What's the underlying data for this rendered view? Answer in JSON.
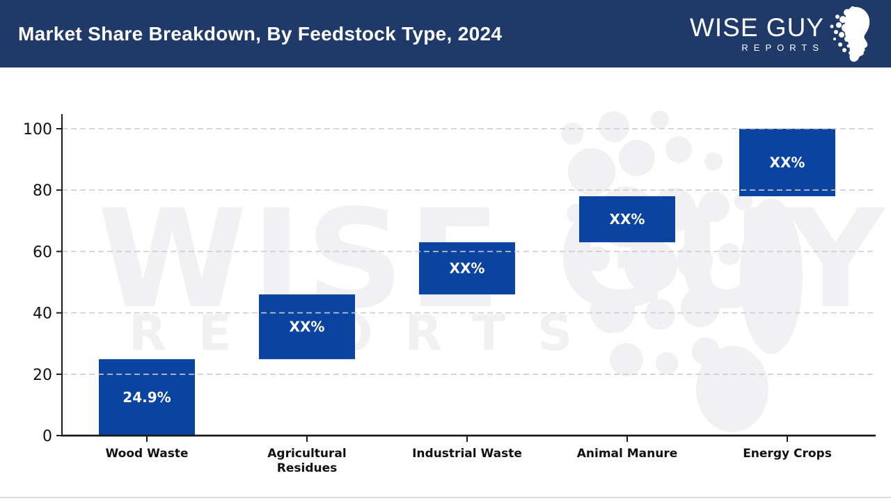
{
  "header": {
    "title": "Market Share Breakdown, By Feedstock Type, 2024",
    "bg_color": "#1f3a68",
    "logo": {
      "line1": "WISE GUY",
      "line2": "REPORTS"
    }
  },
  "chart_data": {
    "type": "bar",
    "subtype": "floating-waterfall",
    "title": "Market Share Breakdown, By Feedstock Type, 2024",
    "categories": [
      "Wood Waste",
      "Agricultural Residues",
      "Industrial Waste",
      "Animal Manure",
      "Energy Crops"
    ],
    "tick_labels": [
      "Wood Waste",
      "Agricultural\nResidues",
      "Industrial Waste",
      "Animal Manure",
      "Energy Crops"
    ],
    "segments": [
      {
        "category": "Wood Waste",
        "start": 0,
        "end": 24.9,
        "label": "24.9%"
      },
      {
        "category": "Agricultural Residues",
        "start": 24.9,
        "end": 46,
        "label": "XX%"
      },
      {
        "category": "Industrial Waste",
        "start": 46,
        "end": 63,
        "label": "XX%"
      },
      {
        "category": "Animal Manure",
        "start": 63,
        "end": 78,
        "label": "XX%"
      },
      {
        "category": "Energy Crops",
        "start": 78,
        "end": 100,
        "label": "XX%"
      }
    ],
    "yticks": [
      0,
      20,
      40,
      60,
      80,
      100
    ],
    "ylim": [
      0,
      104.8
    ],
    "unit": "%",
    "xlabel": "",
    "ylabel": "",
    "grid": "horizontal",
    "grid_style": "dashed",
    "grid_color": "#cccccc",
    "axis_color": "#1a1a1a",
    "bar_color": "#0a43a0",
    "bar_label_color": "#ffffff",
    "watermark": {
      "line1": "WISE GUY",
      "line2": "REPORTS",
      "color": "#f1f1f4"
    }
  }
}
